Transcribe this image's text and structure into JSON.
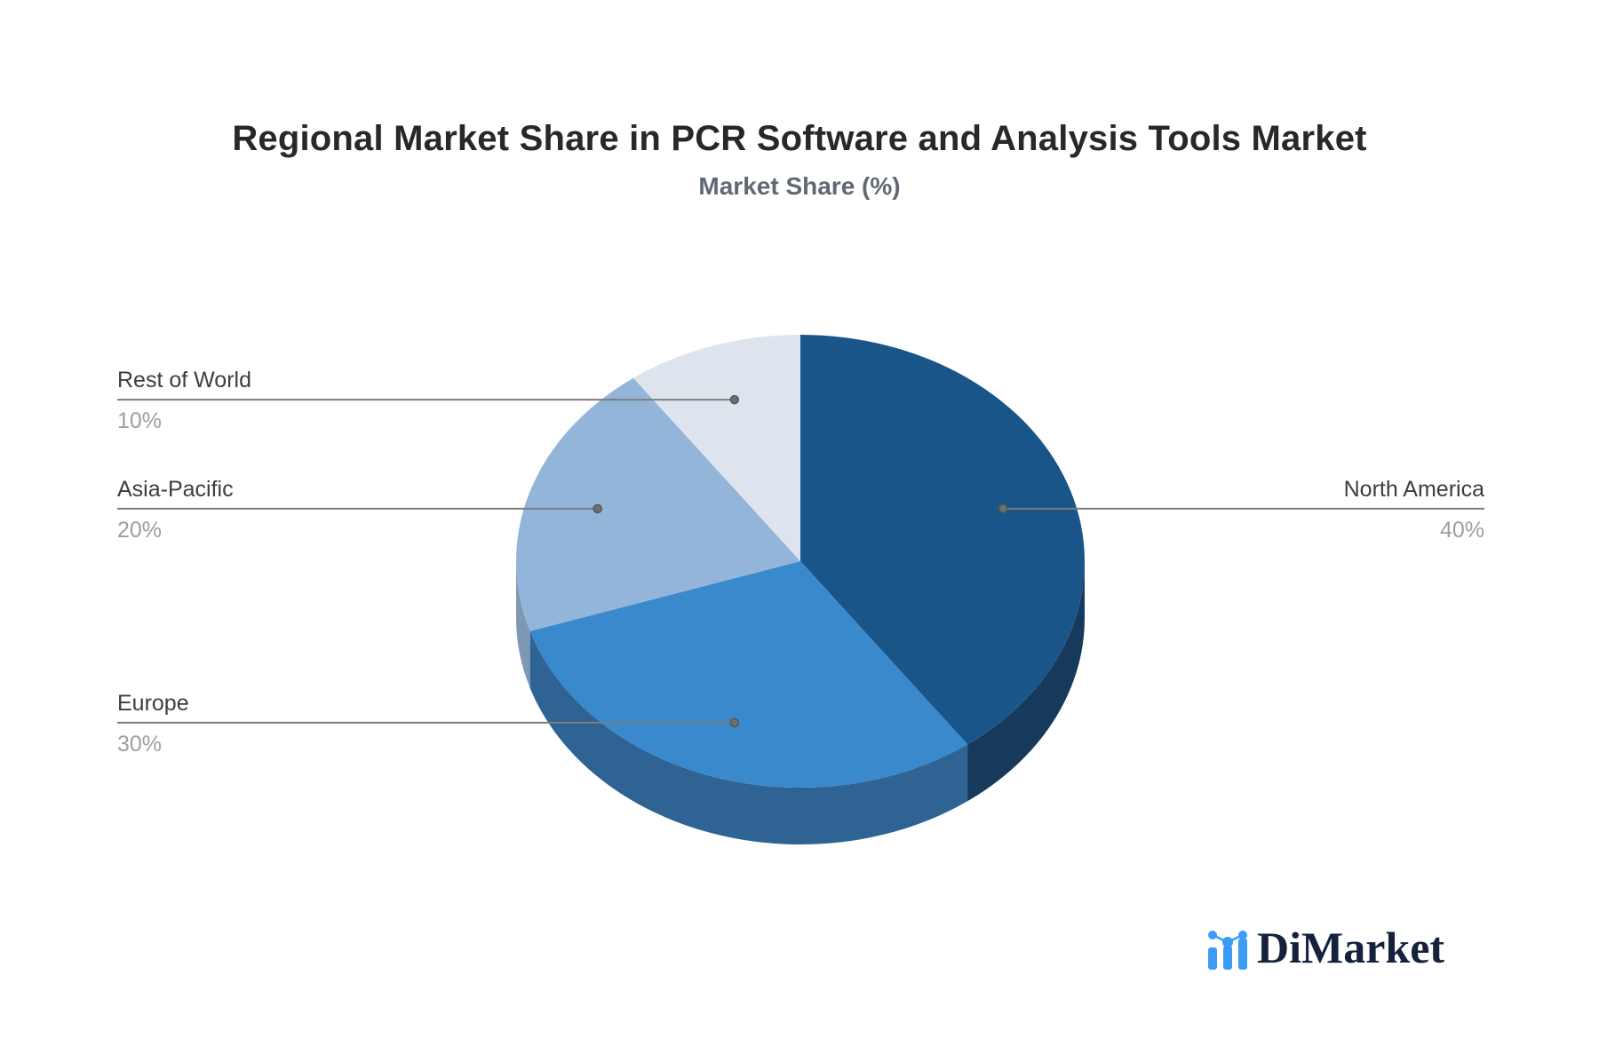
{
  "chart": {
    "title": "Regional Market Share in PCR Software and Analysis Tools Market",
    "subtitle": "Market Share (%)"
  },
  "chart_data": {
    "type": "pie",
    "title": "Regional Market Share in PCR Software and Analysis Tools Market",
    "subtitle": "Market Share (%)",
    "unit": "%",
    "effect": "3d",
    "start_angle_deg": 0,
    "direction": "clockwise",
    "slices": [
      {
        "label": "North America",
        "value": 40,
        "display": "40%",
        "color": "#1a5589",
        "side_color": "#16395c",
        "callout_side": "right"
      },
      {
        "label": "Europe",
        "value": 30,
        "display": "30%",
        "color": "#3a89cc",
        "side_color": "#2e6394",
        "callout_side": "left"
      },
      {
        "label": "Asia-Pacific",
        "value": 20,
        "display": "20%",
        "color": "#93b5d9",
        "side_color": "#7e97b2",
        "callout_side": "left"
      },
      {
        "label": "Rest of World",
        "value": 10,
        "display": "10%",
        "color": "#dee4ee",
        "side_color": "#b8c4d6",
        "callout_side": "left"
      }
    ],
    "legend_position": "callout-labels",
    "leader_line_color": "#7d7d7d",
    "leader_dot_color": "#6f6f6f",
    "label_color": "#3d3d3d",
    "value_color": "#9e9e9e"
  },
  "watermark": {
    "brand": "DiMarket",
    "icon": "bar-line-chart-logo-icon",
    "icon_color": "#3b9bf5",
    "text_color": "#15223c"
  }
}
